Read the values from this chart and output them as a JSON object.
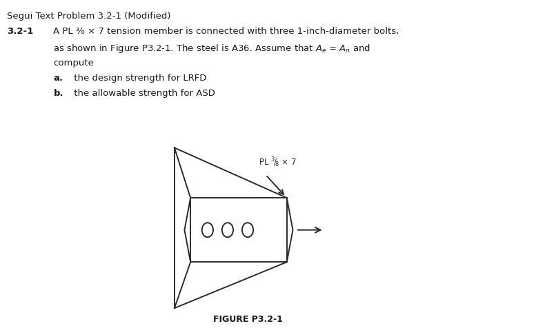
{
  "title": "Segui Text Problem 3.2-1 (Modified)",
  "problem_number": "3.2-1",
  "line1": "A PL ³⁄₈ × 7 tension member is connected with three 1-inch-diameter bolts,",
  "line2": "as shown in Figure P3.2-1. The steel is A36. Assume that $A_e$ = $A_n$ and",
  "line3": "compute",
  "item_a_label": "a.",
  "item_a_text": " the design strength for LRFD",
  "item_b_label": "b.",
  "item_b_text": " the allowable strength for ASD",
  "figure_label": "FIGURE P3.2-1",
  "plate_label": "PL ³⁄₈ × 7",
  "bg_color": "#ffffff",
  "line_color": "#2a2a2a",
  "text_color": "#1a1a1a"
}
